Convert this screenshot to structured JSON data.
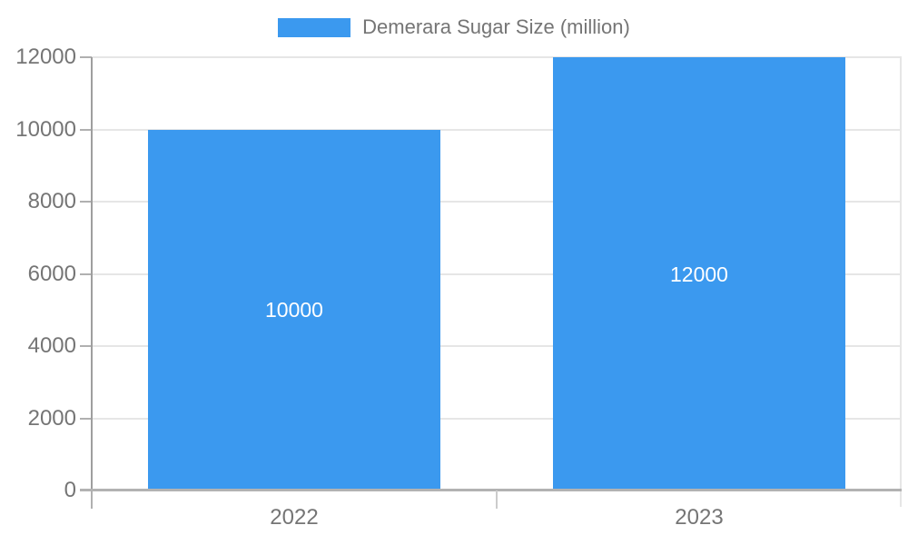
{
  "chart_data": {
    "type": "bar",
    "title": "",
    "xlabel": "",
    "ylabel": "",
    "categories": [
      "2022",
      "2023"
    ],
    "series": [
      {
        "name": "Demerara Sugar Size (million)",
        "values": [
          10000,
          12000
        ],
        "color": "#3B99EF"
      }
    ],
    "bar_value_labels": [
      "10000",
      "12000"
    ],
    "yticks": [
      0,
      2000,
      4000,
      6000,
      8000,
      10000,
      12000
    ],
    "ylim": [
      0,
      12000
    ],
    "grid": true,
    "legend_position": "top"
  },
  "colors": {
    "bar": "#3B99EF",
    "grid_line": "#e6e6e6",
    "x_axis_line": "#b2b2b2",
    "y_axis_line": "#9e9e9e",
    "tick": "#b0b0b0",
    "mid_tick": "#cccccc",
    "axis_text": "#757575",
    "legend_text": "#757575",
    "bar_label_text": "#ffffff",
    "background": "#ffffff"
  }
}
